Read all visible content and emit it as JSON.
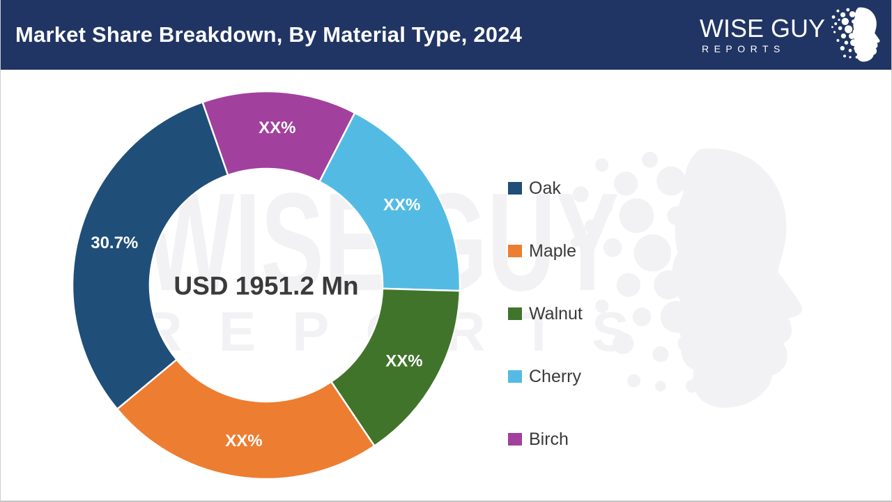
{
  "header": {
    "title": "Market Share Breakdown, By Material Type, 2024",
    "logo": {
      "line1": "WISE GUY",
      "line2": "REPORTS"
    }
  },
  "watermark": {
    "line1": "WISE GUY",
    "line2": "REPORTS"
  },
  "chart_data": {
    "type": "pie",
    "variant": "donut",
    "title": "Market Share Breakdown, By Material Type, 2024",
    "center_label": "USD 1951.2 Mn",
    "start_angle_deg": 109.2,
    "direction": "counterclockwise",
    "inner_radius_ratio": 0.6,
    "legend_position": "right",
    "series": [
      {
        "name": "Oak",
        "label": "30.7%",
        "value_pct": 30.7,
        "color": "#1f4e79"
      },
      {
        "name": "Maple",
        "label": "XX%",
        "value_pct": 23.4,
        "color": "#ed7d31"
      },
      {
        "name": "Walnut",
        "label": "XX%",
        "value_pct": 15.1,
        "color": "#40742a"
      },
      {
        "name": "Cherry",
        "label": "XX%",
        "value_pct": 17.9,
        "color": "#53bbe3"
      },
      {
        "name": "Birch",
        "label": "XX%",
        "value_pct": 12.9,
        "color": "#a2409e"
      }
    ]
  },
  "colors": {
    "header_bg": "#213564",
    "text_dark": "#3a3a3a",
    "watermark": "#f2f2f4",
    "slice_gap": "#ffffff"
  }
}
